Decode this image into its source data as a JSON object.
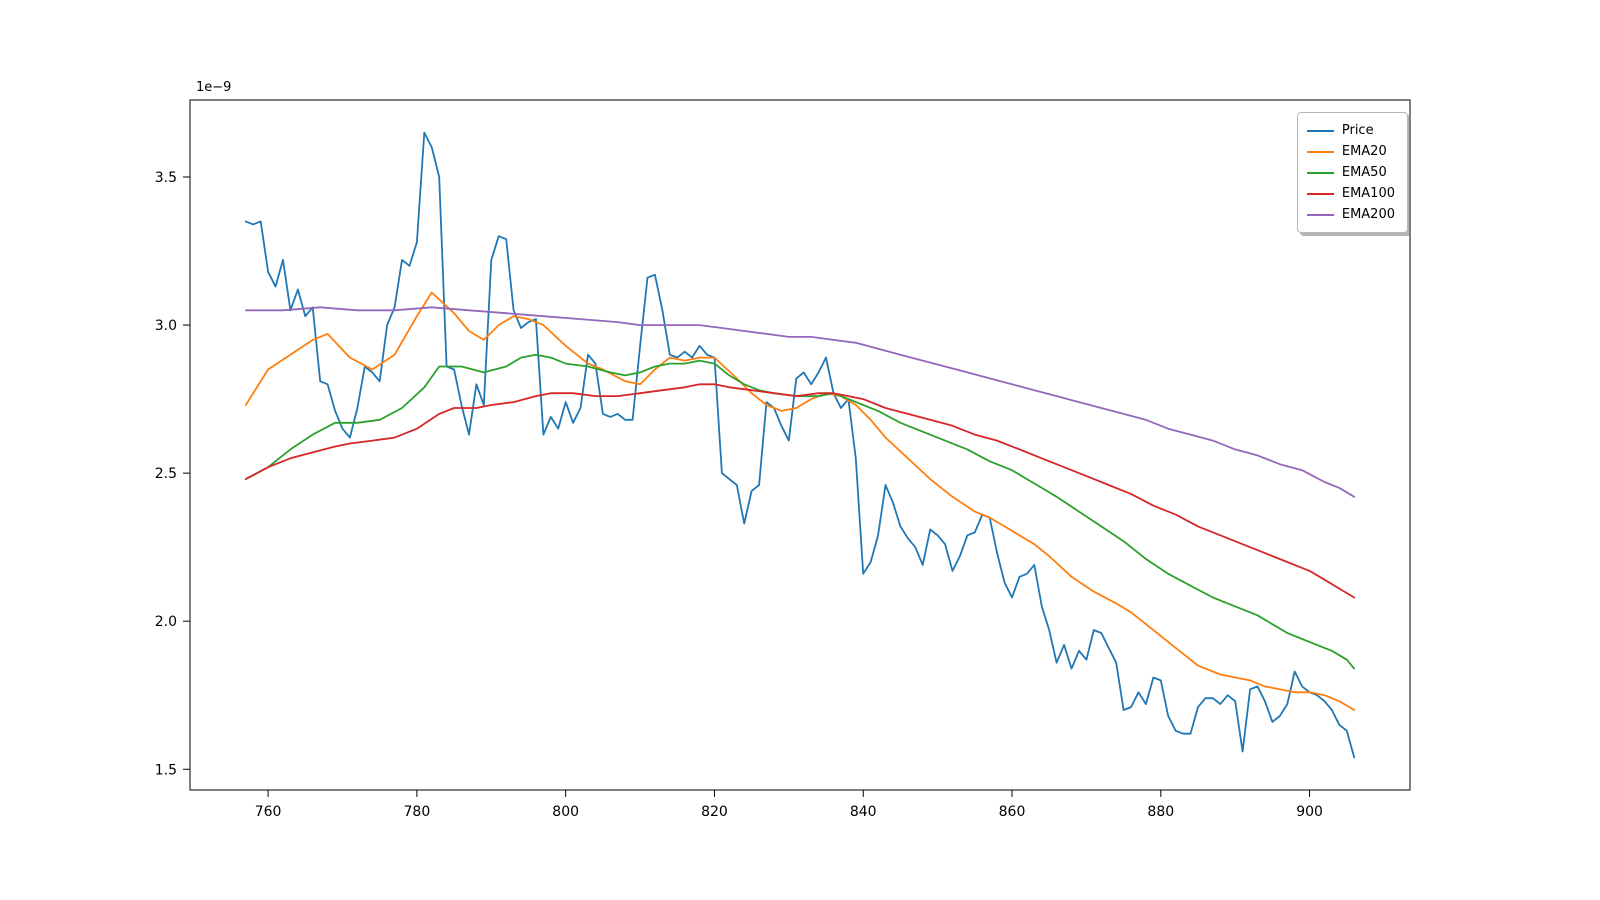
{
  "figure": {
    "background": "#ffffff",
    "axes_edge_color": "#000000",
    "tick_color": "#000000"
  },
  "chart_data": {
    "type": "line",
    "title": "",
    "xlabel": "",
    "ylabel": "",
    "offset_text": "1e−9",
    "grid": false,
    "legend_position": "upper right",
    "xlim": [
      749.5,
      913.5
    ],
    "ylim": [
      1.43,
      3.76
    ],
    "xticks": [
      760,
      780,
      800,
      820,
      840,
      860,
      880,
      900
    ],
    "yticks": [
      1.5,
      2.0,
      2.5,
      3.0,
      3.5
    ],
    "ytick_labels": [
      "1.5",
      "2.0",
      "2.5",
      "3.0",
      "3.5"
    ],
    "series": [
      {
        "name": "Price",
        "color": "#1f77b4",
        "x_start": 757,
        "x_step": 1,
        "y": [
          3.35,
          3.34,
          3.35,
          3.18,
          3.13,
          3.22,
          3.05,
          3.12,
          3.03,
          3.06,
          2.81,
          2.8,
          2.71,
          2.65,
          2.62,
          2.72,
          2.86,
          2.84,
          2.81,
          3.0,
          3.06,
          3.22,
          3.2,
          3.28,
          3.65,
          3.6,
          3.5,
          2.86,
          2.85,
          2.73,
          2.63,
          2.8,
          2.73,
          3.22,
          3.3,
          3.29,
          3.05,
          2.99,
          3.01,
          3.02,
          2.63,
          2.69,
          2.65,
          2.74,
          2.67,
          2.72,
          2.9,
          2.87,
          2.7,
          2.69,
          2.7,
          2.68,
          2.68,
          2.93,
          3.16,
          3.17,
          3.05,
          2.9,
          2.89,
          2.91,
          2.89,
          2.93,
          2.9,
          2.89,
          2.5,
          2.48,
          2.46,
          2.33,
          2.44,
          2.46,
          2.74,
          2.72,
          2.66,
          2.61,
          2.82,
          2.84,
          2.8,
          2.84,
          2.89,
          2.77,
          2.72,
          2.75,
          2.55,
          2.16,
          2.2,
          2.29,
          2.46,
          2.4,
          2.32,
          2.28,
          2.25,
          2.19,
          2.31,
          2.29,
          2.26,
          2.17,
          2.22,
          2.29,
          2.3,
          2.36,
          2.35,
          2.23,
          2.13,
          2.08,
          2.15,
          2.16,
          2.19,
          2.05,
          1.97,
          1.86,
          1.92,
          1.84,
          1.9,
          1.87,
          1.97,
          1.96,
          1.91,
          1.86,
          1.7,
          1.71,
          1.76,
          1.72,
          1.81,
          1.8,
          1.68,
          1.63,
          1.62,
          1.62,
          1.71,
          1.74,
          1.74,
          1.72,
          1.75,
          1.73,
          1.56,
          1.77,
          1.78,
          1.73,
          1.66,
          1.68,
          1.72,
          1.83,
          1.78,
          1.76,
          1.75,
          1.73,
          1.7,
          1.65,
          1.63,
          1.54
        ]
      },
      {
        "name": "EMA20",
        "color": "#ff7f0e",
        "x": [
          757,
          760,
          763,
          766,
          768,
          771,
          774,
          777,
          780,
          782,
          785,
          787,
          789,
          791,
          793,
          795,
          797,
          800,
          803,
          805,
          808,
          810,
          812,
          814,
          816,
          818,
          820,
          823,
          825,
          827,
          829,
          831,
          833,
          835,
          837,
          839,
          841,
          843,
          846,
          849,
          852,
          855,
          857,
          859,
          861,
          863,
          865,
          868,
          871,
          874,
          876,
          879,
          882,
          885,
          888,
          890,
          892,
          894,
          896,
          898,
          900,
          902,
          904,
          906
        ],
        "y": [
          2.73,
          2.85,
          2.9,
          2.95,
          2.97,
          2.89,
          2.85,
          2.9,
          3.03,
          3.11,
          3.04,
          2.98,
          2.95,
          3.0,
          3.03,
          3.02,
          3.0,
          2.93,
          2.87,
          2.85,
          2.81,
          2.8,
          2.85,
          2.89,
          2.88,
          2.89,
          2.89,
          2.82,
          2.77,
          2.73,
          2.71,
          2.72,
          2.75,
          2.77,
          2.76,
          2.73,
          2.68,
          2.62,
          2.55,
          2.48,
          2.42,
          2.37,
          2.35,
          2.32,
          2.29,
          2.26,
          2.22,
          2.15,
          2.1,
          2.06,
          2.03,
          1.97,
          1.91,
          1.85,
          1.82,
          1.81,
          1.8,
          1.78,
          1.77,
          1.76,
          1.76,
          1.75,
          1.73,
          1.7
        ]
      },
      {
        "name": "EMA50",
        "color": "#2ca02c",
        "x": [
          757,
          760,
          763,
          766,
          769,
          772,
          775,
          778,
          781,
          783,
          786,
          789,
          792,
          794,
          796,
          798,
          800,
          803,
          806,
          808,
          810,
          812,
          814,
          816,
          818,
          820,
          822,
          824,
          826,
          828,
          831,
          834,
          836,
          838,
          840,
          842,
          845,
          848,
          851,
          854,
          857,
          860,
          862,
          864,
          866,
          869,
          872,
          875,
          878,
          881,
          884,
          887,
          890,
          893,
          895,
          897,
          899,
          901,
          903,
          905,
          906
        ],
        "y": [
          2.48,
          2.52,
          2.58,
          2.63,
          2.67,
          2.67,
          2.68,
          2.72,
          2.79,
          2.86,
          2.86,
          2.84,
          2.86,
          2.89,
          2.9,
          2.89,
          2.87,
          2.86,
          2.84,
          2.83,
          2.84,
          2.86,
          2.87,
          2.87,
          2.88,
          2.87,
          2.83,
          2.8,
          2.78,
          2.77,
          2.76,
          2.76,
          2.77,
          2.75,
          2.73,
          2.71,
          2.67,
          2.64,
          2.61,
          2.58,
          2.54,
          2.51,
          2.48,
          2.45,
          2.42,
          2.37,
          2.32,
          2.27,
          2.21,
          2.16,
          2.12,
          2.08,
          2.05,
          2.02,
          1.99,
          1.96,
          1.94,
          1.92,
          1.9,
          1.87,
          1.84
        ]
      },
      {
        "name": "EMA100",
        "color": "#d62728",
        "x": [
          757,
          760,
          763,
          766,
          769,
          771,
          774,
          777,
          780,
          783,
          785,
          788,
          790,
          793,
          796,
          798,
          801,
          804,
          807,
          810,
          813,
          816,
          818,
          820,
          822,
          825,
          828,
          831,
          834,
          836,
          838,
          840,
          843,
          846,
          849,
          852,
          855,
          858,
          861,
          864,
          867,
          870,
          873,
          876,
          879,
          882,
          885,
          888,
          891,
          894,
          897,
          900,
          902,
          904,
          906
        ],
        "y": [
          2.48,
          2.52,
          2.55,
          2.57,
          2.59,
          2.6,
          2.61,
          2.62,
          2.65,
          2.7,
          2.72,
          2.72,
          2.73,
          2.74,
          2.76,
          2.77,
          2.77,
          2.76,
          2.76,
          2.77,
          2.78,
          2.79,
          2.8,
          2.8,
          2.79,
          2.78,
          2.77,
          2.76,
          2.77,
          2.77,
          2.76,
          2.75,
          2.72,
          2.7,
          2.68,
          2.66,
          2.63,
          2.61,
          2.58,
          2.55,
          2.52,
          2.49,
          2.46,
          2.43,
          2.39,
          2.36,
          2.32,
          2.29,
          2.26,
          2.23,
          2.2,
          2.17,
          2.14,
          2.11,
          2.08
        ]
      },
      {
        "name": "EMA200",
        "color": "#9467bd",
        "x": [
          757,
          762,
          767,
          772,
          777,
          782,
          787,
          792,
          797,
          802,
          807,
          810,
          814,
          818,
          821,
          824,
          827,
          830,
          833,
          836,
          839,
          842,
          845,
          848,
          851,
          854,
          857,
          860,
          863,
          866,
          869,
          872,
          875,
          878,
          881,
          884,
          887,
          890,
          893,
          896,
          899,
          902,
          904,
          906
        ],
        "y": [
          3.05,
          3.05,
          3.06,
          3.05,
          3.05,
          3.06,
          3.05,
          3.04,
          3.03,
          3.02,
          3.01,
          3.0,
          3.0,
          3.0,
          2.99,
          2.98,
          2.97,
          2.96,
          2.96,
          2.95,
          2.94,
          2.92,
          2.9,
          2.88,
          2.86,
          2.84,
          2.82,
          2.8,
          2.78,
          2.76,
          2.74,
          2.72,
          2.7,
          2.68,
          2.65,
          2.63,
          2.61,
          2.58,
          2.56,
          2.53,
          2.51,
          2.47,
          2.45,
          2.42
        ]
      }
    ]
  },
  "legend": {
    "entries": [
      "Price",
      "EMA20",
      "EMA50",
      "EMA100",
      "EMA200"
    ]
  }
}
